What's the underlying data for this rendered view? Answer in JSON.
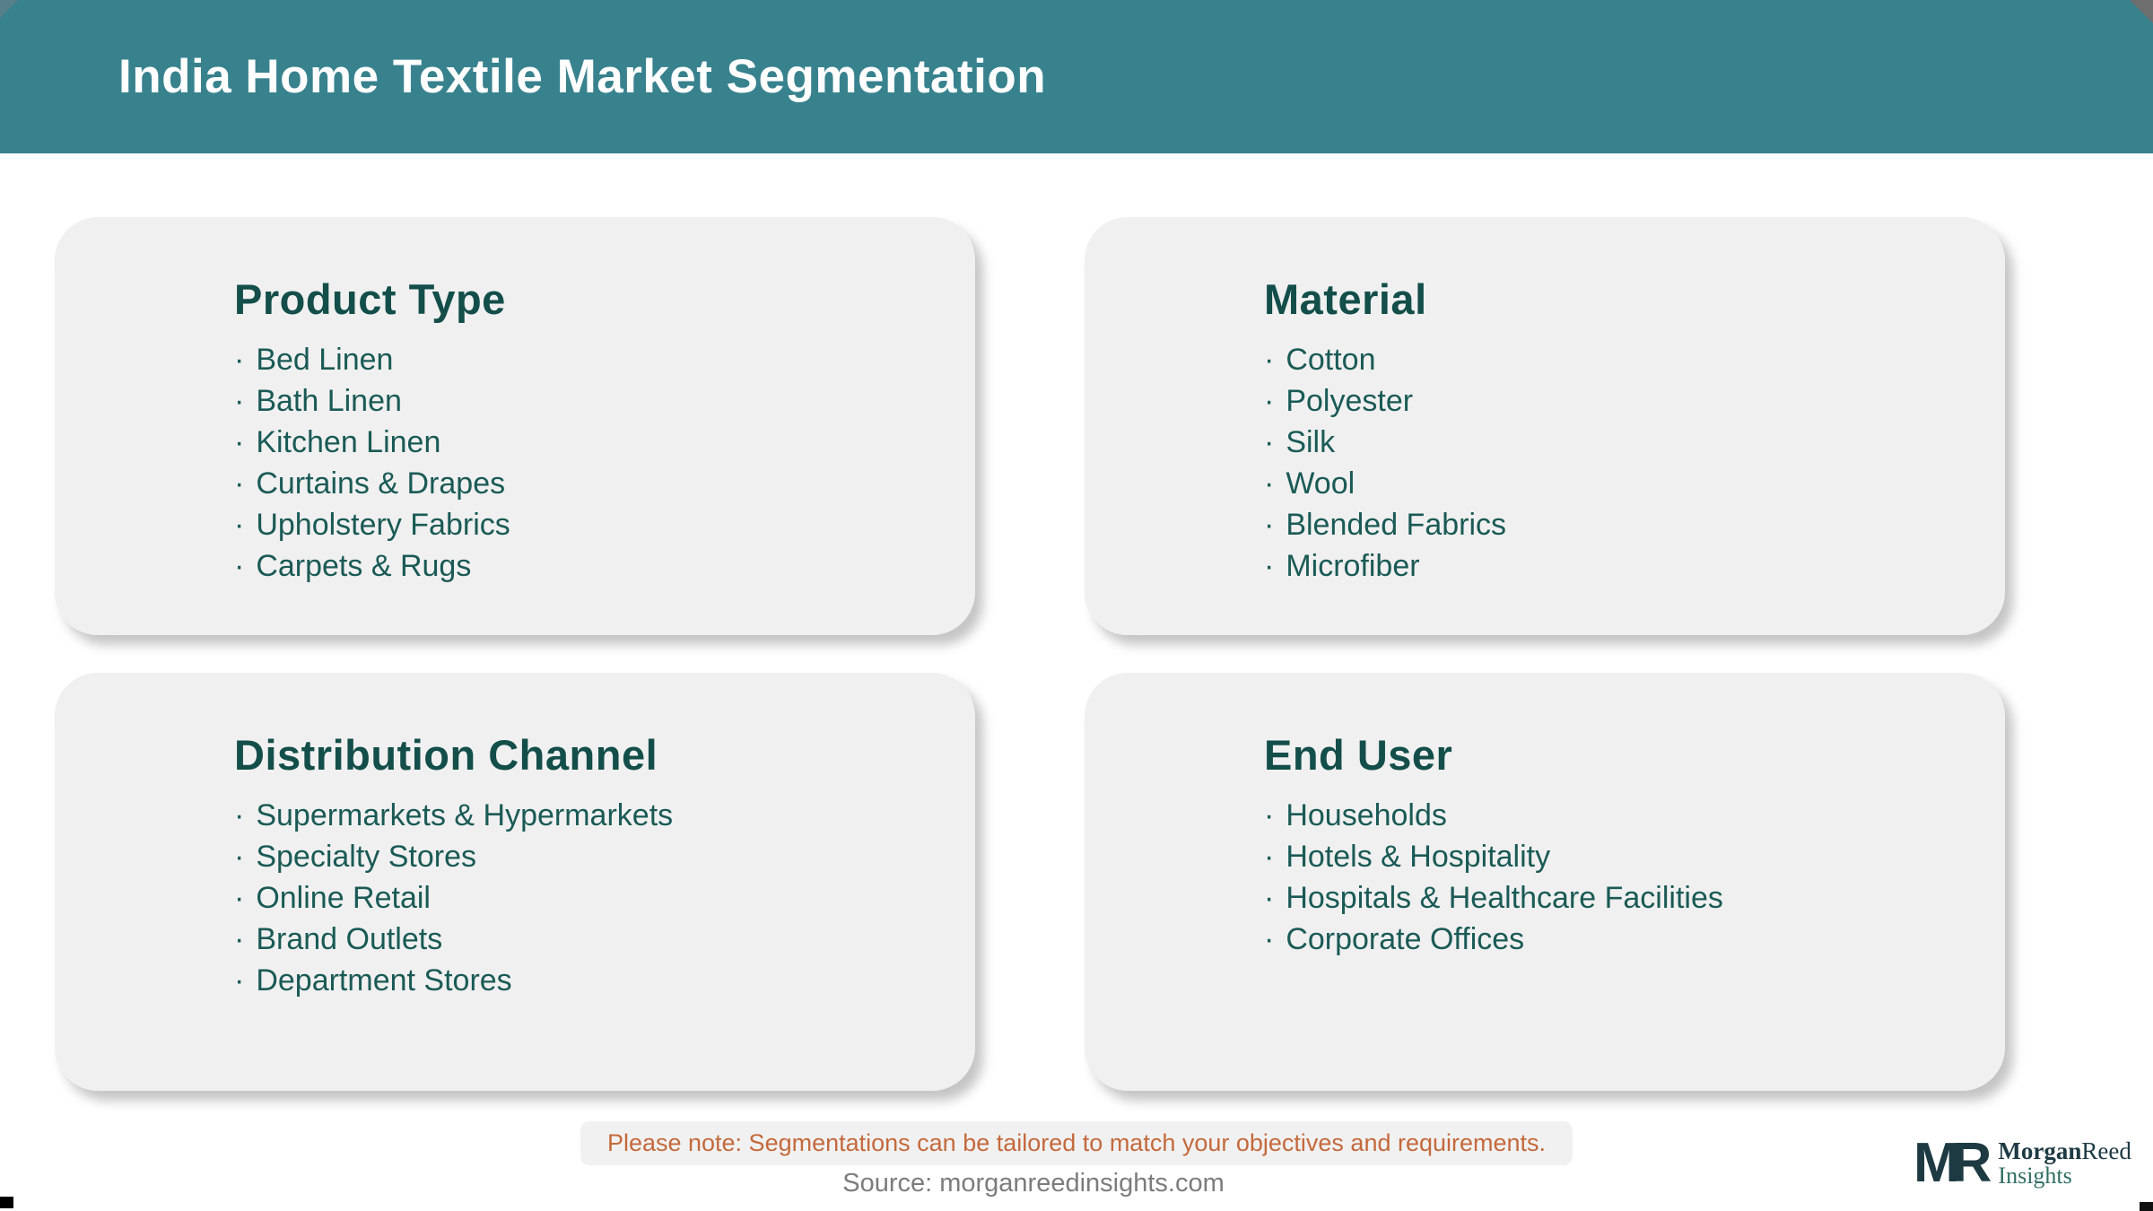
{
  "header": {
    "title": "India Home Textile Market Segmentation"
  },
  "cards": [
    {
      "title": "Product Type",
      "items": [
        "Bed Linen",
        "Bath Linen",
        "Kitchen Linen",
        "Curtains & Drapes",
        "Upholstery Fabrics",
        "Carpets & Rugs"
      ]
    },
    {
      "title": "Material",
      "items": [
        "Cotton",
        "Polyester",
        "Silk",
        "Wool",
        "Blended Fabrics",
        "Microfiber"
      ]
    },
    {
      "title": "Distribution Channel",
      "items": [
        "Supermarkets & Hypermarkets",
        "Specialty Stores",
        "Online Retail",
        "Brand Outlets",
        "Department Stores"
      ]
    },
    {
      "title": "End User",
      "items": [
        "Households",
        "Hotels & Hospitality",
        "Hospitals & Healthcare Facilities",
        "Corporate Offices"
      ]
    }
  ],
  "footer": {
    "note": "Please note: Segmentations can be tailored to match your objectives and requirements.",
    "source": "Source: morganreedinsights.com"
  },
  "logo": {
    "monogram": "MR",
    "brand_bold": "Morgan",
    "brand_regular": "Reed",
    "brand_sub": "Insights"
  },
  "ui": {
    "bullet": "·"
  },
  "colors": {
    "header_teal": "#38828E",
    "heading_green": "#134E4A",
    "item_green": "#1A5A56",
    "card_bg": "#F0F0F0",
    "note_orange": "#C4693C",
    "note_bg": "#F1F1F1",
    "source_gray": "#7C7C7C",
    "logo_navy": "#1D3A43",
    "logo_teal": "#2F6E63"
  }
}
